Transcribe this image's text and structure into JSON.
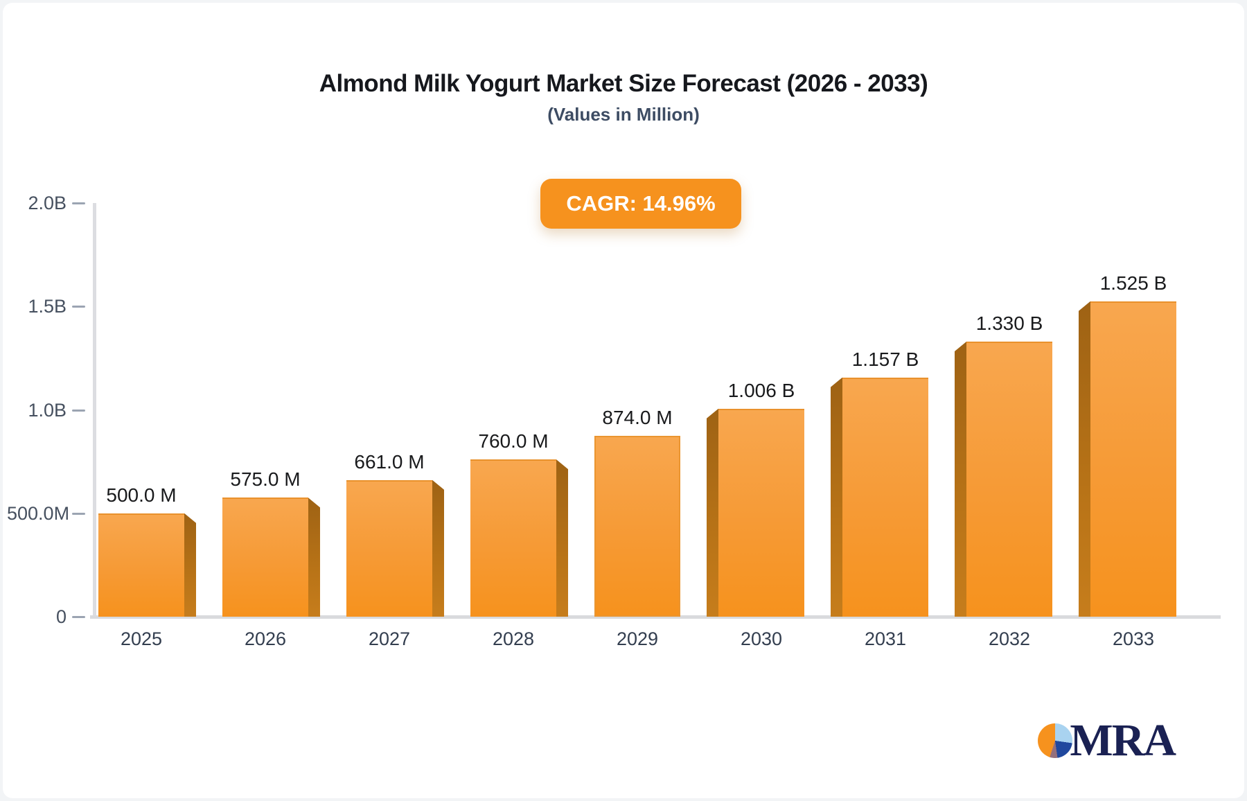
{
  "header": {
    "title": "Almond Milk Yogurt Market Size Forecast (2026 - 2033)",
    "subtitle": "(Values in Million)",
    "cagr_label": "CAGR: 14.96%"
  },
  "logo": {
    "text": "MRA"
  },
  "colors": {
    "accent_orange": "#f6921e",
    "bar_gradient_top": "#f8a74f",
    "bar_gradient_bottom": "#f6921d",
    "bar_side_dark": "#9e6214",
    "axis_line": "#dcdde1",
    "tick_mark": "#9ba4b2",
    "axis_label": "#46505f",
    "value_label": "#191a1c",
    "badge_text": "#ffffff",
    "logo_navy": "#1a2153",
    "logo_light_blue": "#a9d3f0",
    "logo_blue": "#20489e",
    "logo_mauve": "#95707c"
  },
  "chart_data": {
    "type": "bar",
    "title": "Almond Milk Yogurt Market Size Forecast (2026 - 2033)",
    "subtitle": "(Values in Million)",
    "annotation": "CAGR: 14.96%",
    "categories": [
      "2025",
      "2026",
      "2027",
      "2028",
      "2029",
      "2030",
      "2031",
      "2032",
      "2033"
    ],
    "values_millions": [
      500,
      575,
      661,
      760,
      874,
      1006,
      1157,
      1330,
      1525
    ],
    "value_labels": [
      "500.0 M",
      "575.0 M",
      "661.0 M",
      "760.0 M",
      "874.0 M",
      "1.006 B",
      "1.157 B",
      "1.330 B",
      "1.525 B"
    ],
    "y_ticks": [
      {
        "label": "0",
        "value": 0
      },
      {
        "label": "500.0M",
        "value": 500
      },
      {
        "label": "1.0B",
        "value": 1000
      },
      {
        "label": "1.5B",
        "value": 1500
      },
      {
        "label": "2.0B",
        "value": 2000
      }
    ],
    "ylim": [
      0,
      2000
    ],
    "xlabel": "",
    "ylabel": "",
    "grid": false,
    "legend": false
  }
}
